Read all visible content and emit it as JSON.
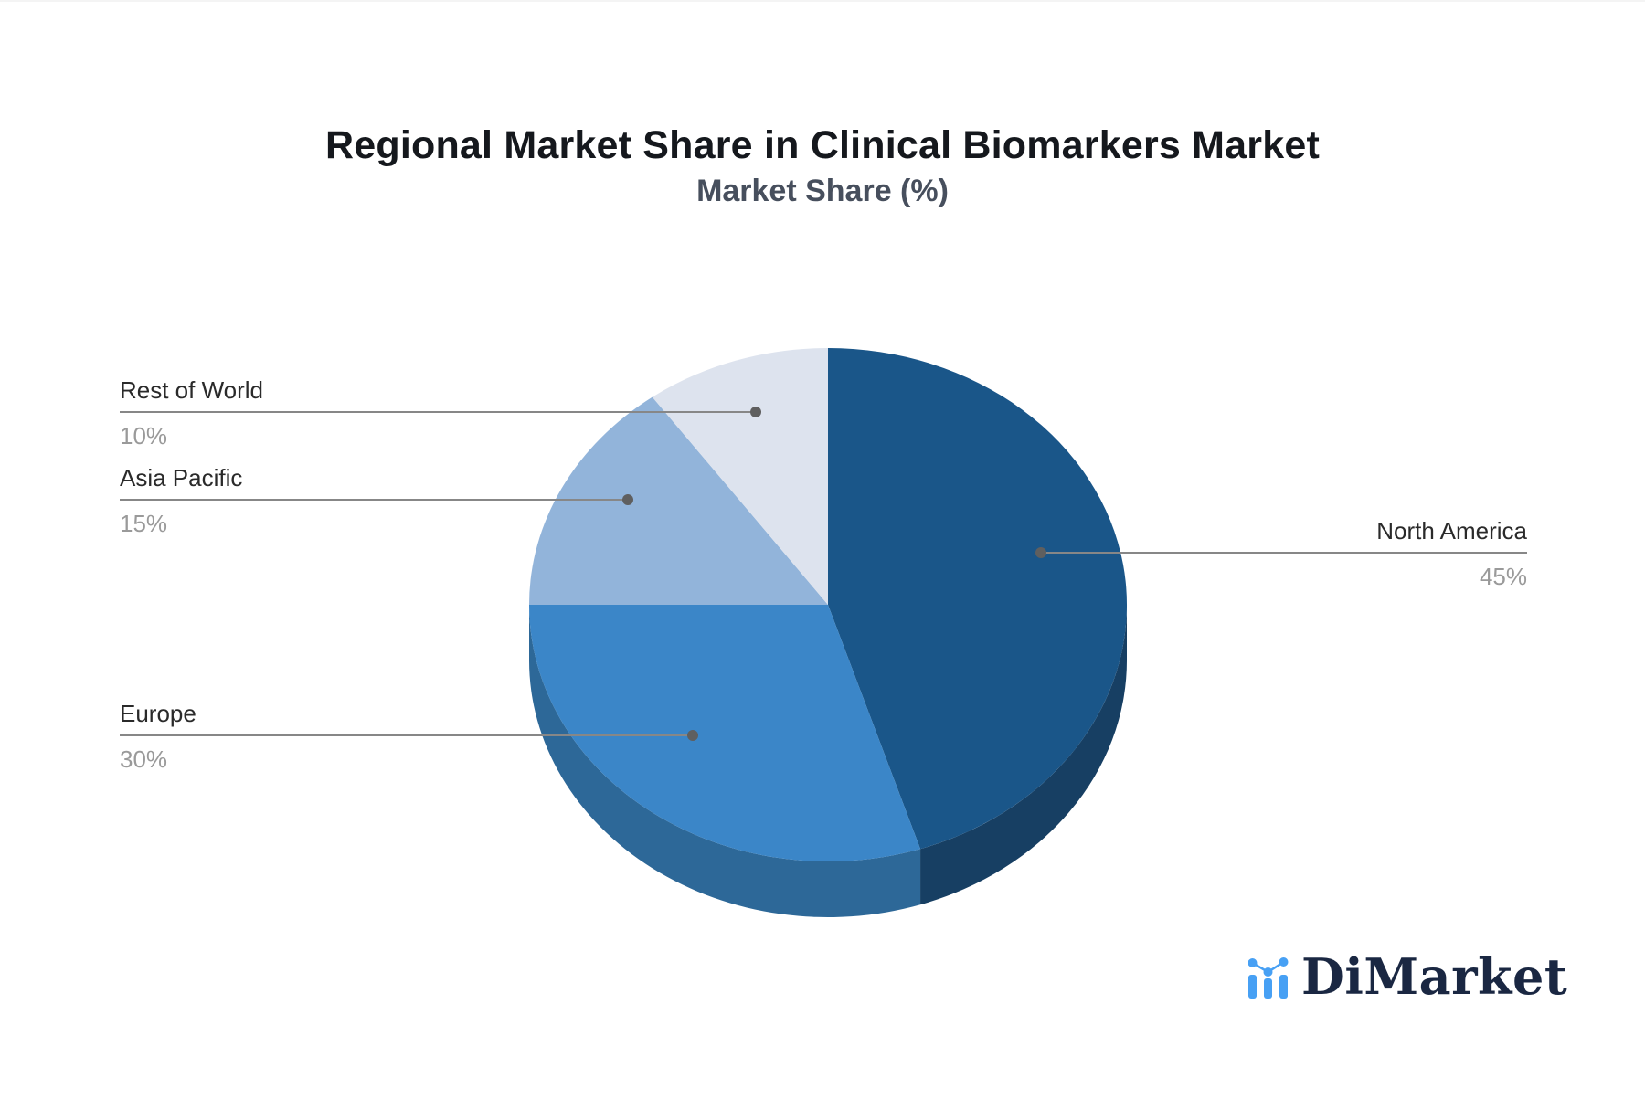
{
  "header": {
    "title": "Regional Market Share in Clinical Biomarkers Market",
    "subtitle": "Market Share (%)"
  },
  "chart_data": {
    "type": "pie",
    "title": "Regional Market Share in Clinical Biomarkers Market",
    "subtitle": "Market Share (%)",
    "unit": "%",
    "effect": "3d",
    "direction": "clockwise",
    "start_angle_deg": 0,
    "legend_position": "callout-labels",
    "slices": [
      {
        "label": "North America",
        "value": 45,
        "display": "45%",
        "color": "#1A5689",
        "side_color": "#173F63",
        "label_side": "right"
      },
      {
        "label": "Europe",
        "value": 30,
        "display": "30%",
        "color": "#3B86C8",
        "side_color": "#2D6898",
        "label_side": "left"
      },
      {
        "label": "Asia Pacific",
        "value": 15,
        "display": "15%",
        "color": "#92B4DA",
        "side_color": "#7FA0C4",
        "label_side": "left"
      },
      {
        "label": "Rest of World",
        "value": 10,
        "display": "10%",
        "color": "#DDE3EE",
        "side_color": "#C5CEDD",
        "label_side": "left"
      }
    ]
  },
  "callout_style": {
    "leader_line_color": "#878787",
    "leader_dot_color": "#5F5F5F",
    "name_color": "#2A2A2A",
    "value_color": "#9A9A9A"
  },
  "brand": {
    "name": "DiMarket",
    "icon": "bar-chart-logo-icon",
    "icon_color": "#47A0F4",
    "text_color": "#1A2742"
  },
  "colors": {
    "background": "#FFFFFF",
    "title": "#15181D",
    "subtitle": "#474F5D"
  }
}
